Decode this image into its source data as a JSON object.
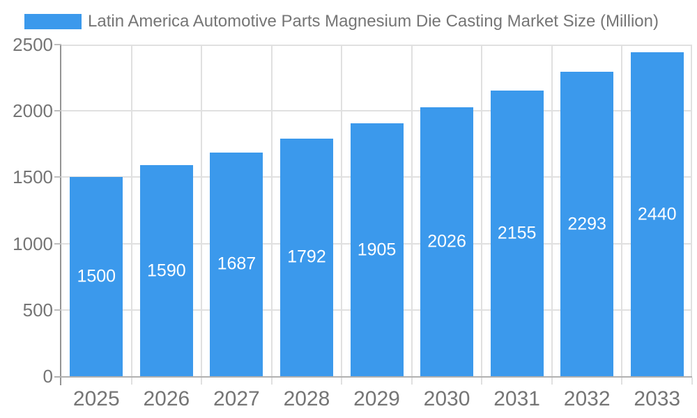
{
  "colors": {
    "background": "#FFFFFF",
    "bar": "#3B99EC",
    "bar_label_text": "#FFFFFF",
    "axis_text": "#757575",
    "y_axis_line": "#949494",
    "x_axis_line": "#B0B0B0",
    "gridline": "#E0E0E0",
    "tick": "#BDBDBD"
  },
  "legend": {
    "label": "Latin America Automotive Parts Magnesium Die Casting Market Size (Million)"
  },
  "chart_data": {
    "type": "bar",
    "title": "Latin America Automotive Parts Magnesium Die Casting Market Size (Million)",
    "categories": [
      "2025",
      "2026",
      "2027",
      "2028",
      "2029",
      "2030",
      "2031",
      "2032",
      "2033"
    ],
    "values": [
      1500,
      1590,
      1687,
      1792,
      1905,
      2026,
      2155,
      2293,
      2440
    ],
    "xlabel": "",
    "ylabel": "",
    "ylim": [
      0,
      2500
    ],
    "yticks": [
      0,
      500,
      1000,
      1500,
      2000,
      2500
    ],
    "grid": true,
    "legend_position": "top-left",
    "value_label_position": "inside-center"
  }
}
